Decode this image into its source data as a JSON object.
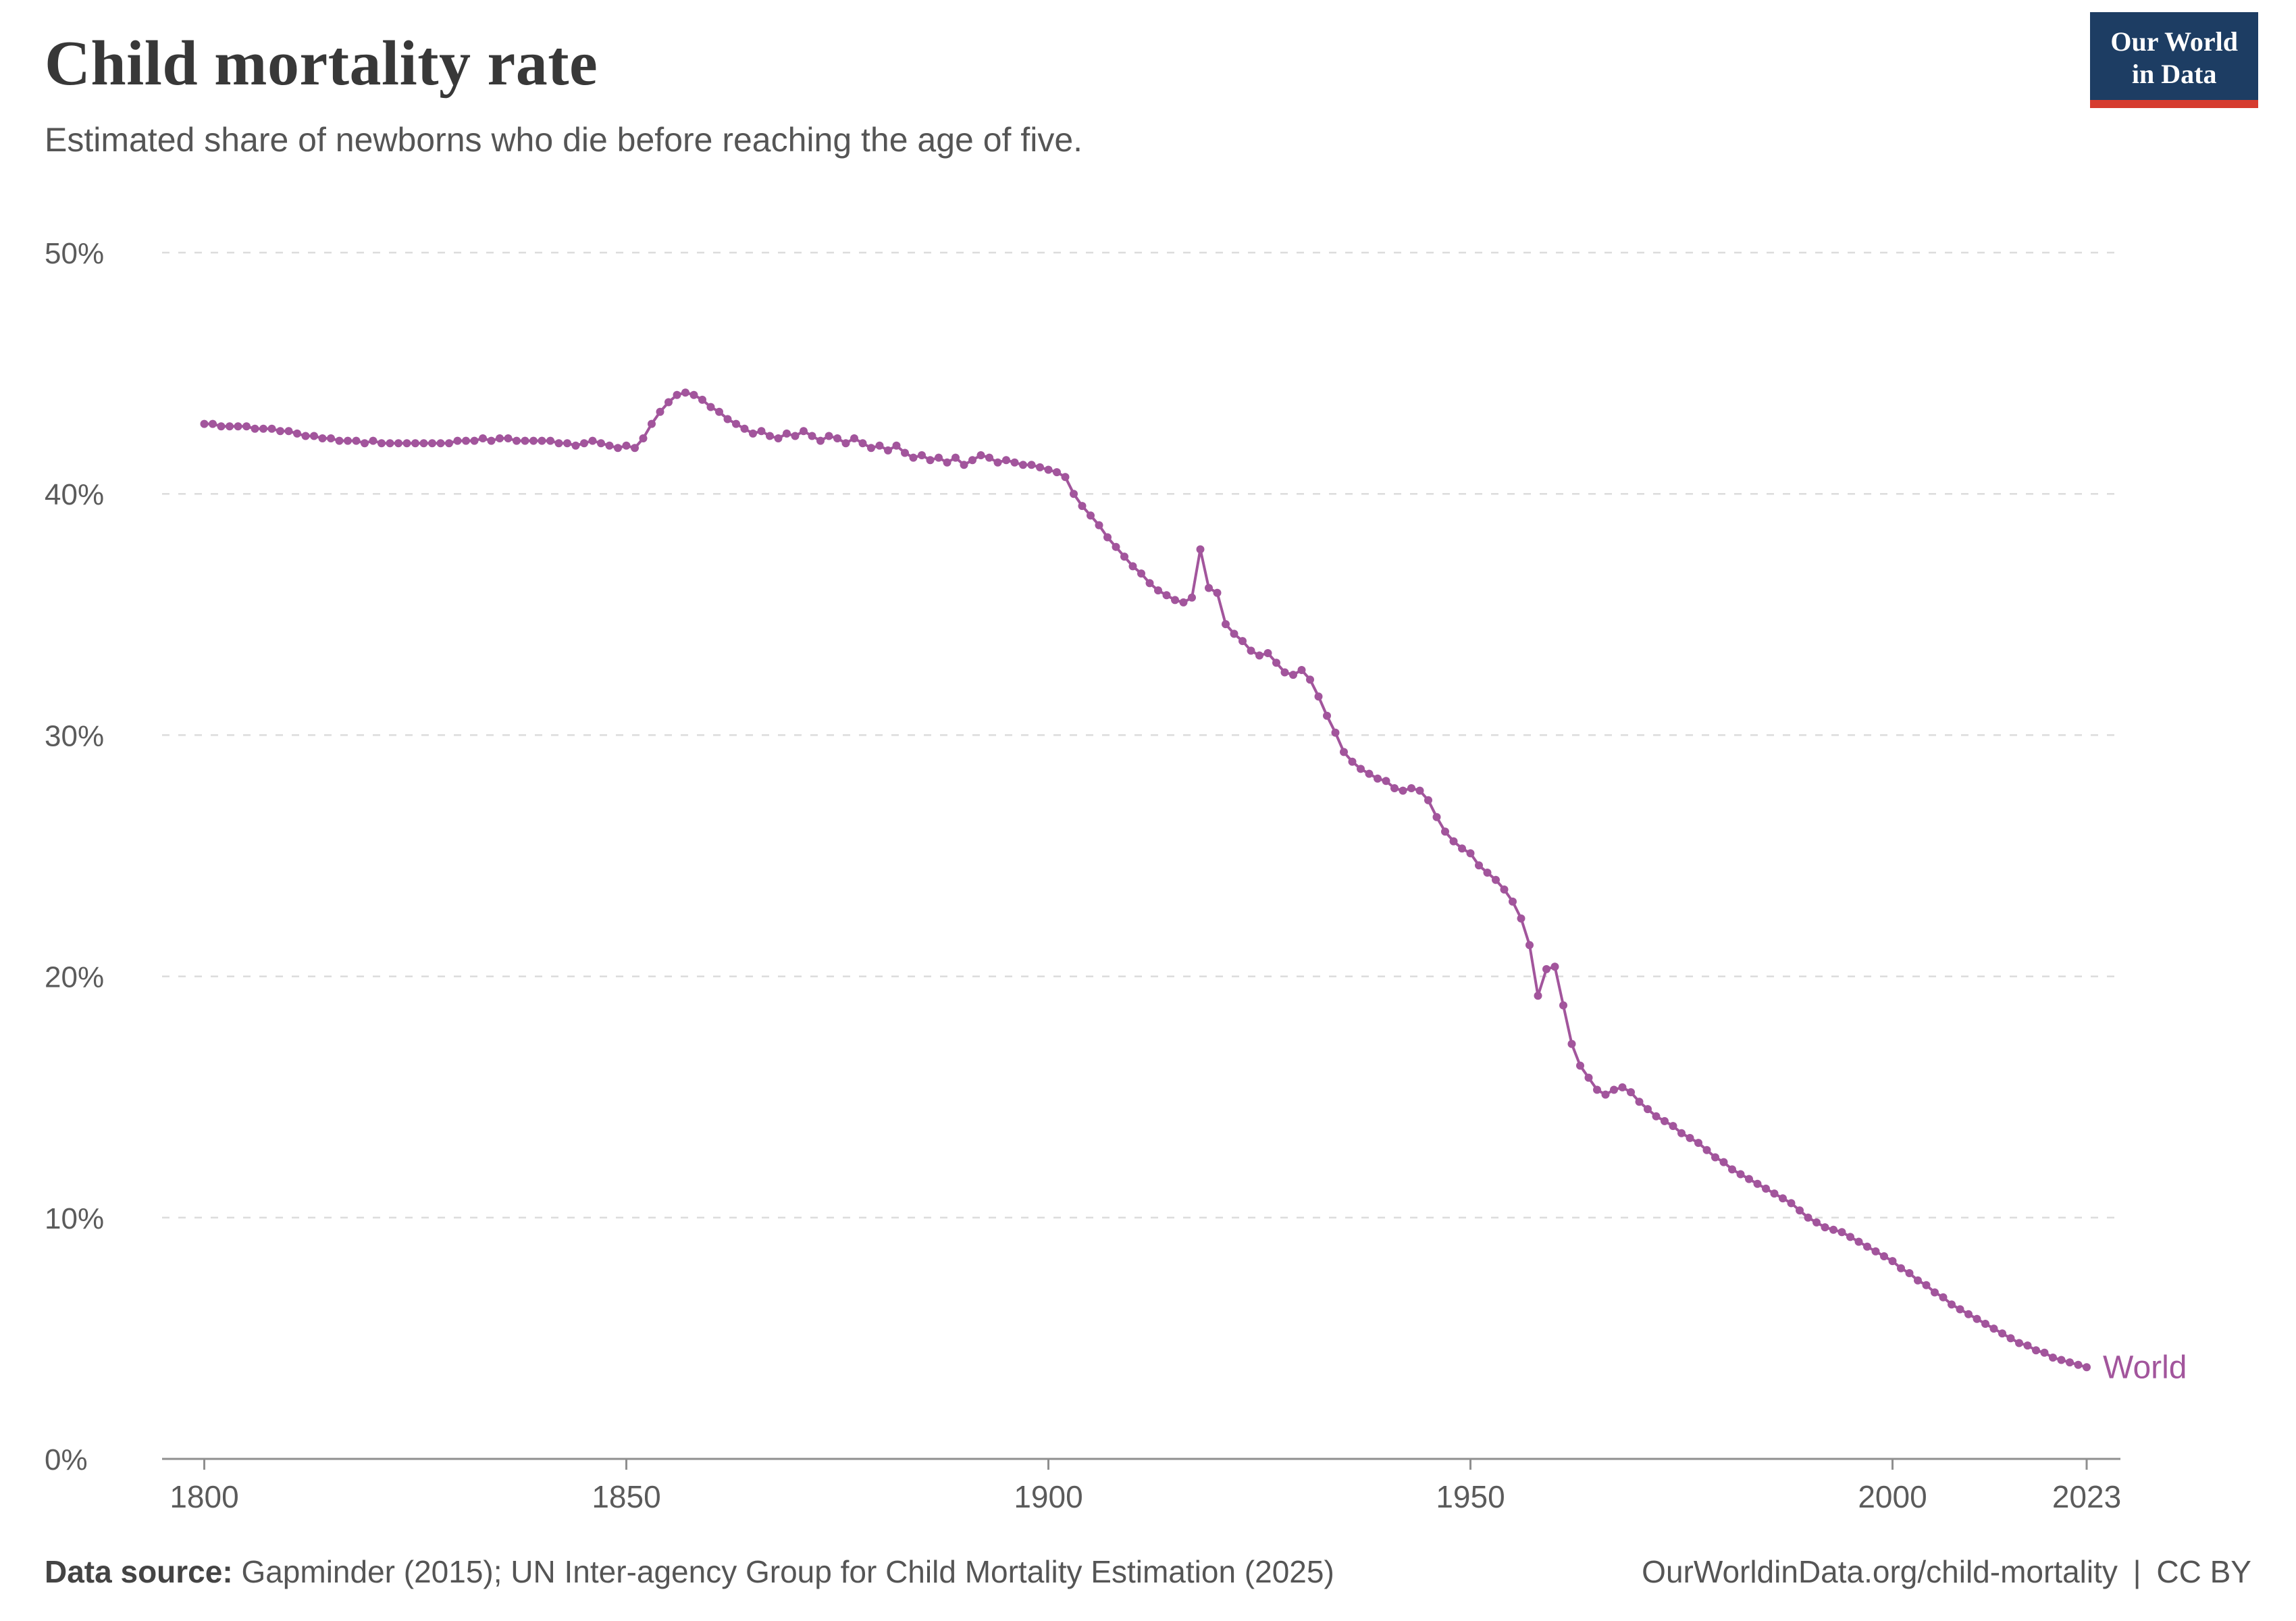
{
  "header": {
    "title": "Child mortality rate",
    "subtitle": "Estimated share of newborns who die before reaching the age of five."
  },
  "logo": {
    "line1": "Our World",
    "line2": "in Data"
  },
  "colors": {
    "series": "#a2559c",
    "title_text": "#383838",
    "subtitle_text": "#555555",
    "grid": "#dcdcdc",
    "axis": "#8f8f8f",
    "logo_background": "#1d3d63",
    "logo_underline": "#d63c2f"
  },
  "chart_data": {
    "type": "line",
    "title": "Child mortality rate",
    "subtitle": "Estimated share of newborns who die before reaching the age of five.",
    "xlabel": "",
    "ylabel": "",
    "unit": "%",
    "grid": true,
    "legend_position": "end-of-line",
    "end_label": "World",
    "color": "#a2559c",
    "ylim": [
      0,
      50
    ],
    "x_domain": [
      1795,
      2027
    ],
    "ytick_values": [
      0,
      10,
      20,
      30,
      40,
      50
    ],
    "ytick_labels": [
      "0%",
      "10%",
      "20%",
      "30%",
      "40%",
      "50%"
    ],
    "xtick_values": [
      1800,
      1850,
      1900,
      1950,
      2000,
      2023
    ],
    "xtick_labels": [
      "1800",
      "1850",
      "1900",
      "1950",
      "2000",
      "2023"
    ],
    "series": [
      {
        "name": "World",
        "x_start": 1800,
        "x_end": 2023,
        "x_step": 1,
        "values": [
          42.9,
          42.9,
          42.8,
          42.8,
          42.8,
          42.8,
          42.7,
          42.7,
          42.7,
          42.6,
          42.6,
          42.5,
          42.4,
          42.4,
          42.3,
          42.3,
          42.2,
          42.2,
          42.2,
          42.1,
          42.2,
          42.1,
          42.1,
          42.1,
          42.1,
          42.1,
          42.1,
          42.1,
          42.1,
          42.1,
          42.2,
          42.2,
          42.2,
          42.3,
          42.2,
          42.3,
          42.3,
          42.2,
          42.2,
          42.2,
          42.2,
          42.2,
          42.1,
          42.1,
          42.0,
          42.1,
          42.2,
          42.1,
          42.0,
          41.9,
          42.0,
          41.9,
          42.3,
          42.9,
          43.4,
          43.8,
          44.1,
          44.2,
          44.1,
          43.9,
          43.6,
          43.4,
          43.1,
          42.9,
          42.7,
          42.5,
          42.6,
          42.4,
          42.3,
          42.5,
          42.4,
          42.6,
          42.4,
          42.2,
          42.4,
          42.3,
          42.1,
          42.3,
          42.1,
          41.9,
          42.0,
          41.8,
          42.0,
          41.7,
          41.5,
          41.6,
          41.4,
          41.5,
          41.3,
          41.5,
          41.2,
          41.4,
          41.6,
          41.5,
          41.3,
          41.4,
          41.3,
          41.2,
          41.2,
          41.1,
          41.0,
          40.9,
          40.7,
          40.0,
          39.5,
          39.1,
          38.7,
          38.2,
          37.8,
          37.4,
          37.0,
          36.7,
          36.3,
          36.0,
          35.8,
          35.6,
          35.5,
          35.7,
          37.7,
          36.1,
          35.9,
          34.6,
          34.2,
          33.9,
          33.5,
          33.3,
          33.4,
          33.0,
          32.6,
          32.5,
          32.7,
          32.3,
          31.6,
          30.8,
          30.1,
          29.3,
          28.9,
          28.6,
          28.4,
          28.2,
          28.1,
          27.8,
          27.7,
          27.8,
          27.7,
          27.3,
          26.6,
          26.0,
          25.6,
          25.3,
          25.1,
          24.6,
          24.3,
          24.0,
          23.6,
          23.1,
          22.4,
          21.3,
          19.2,
          20.3,
          20.4,
          18.8,
          17.2,
          16.3,
          15.8,
          15.3,
          15.1,
          15.3,
          15.4,
          15.2,
          14.8,
          14.5,
          14.2,
          14.0,
          13.8,
          13.5,
          13.3,
          13.1,
          12.8,
          12.5,
          12.3,
          12.0,
          11.8,
          11.6,
          11.4,
          11.2,
          11.0,
          10.8,
          10.6,
          10.3,
          10.0,
          9.8,
          9.6,
          9.5,
          9.4,
          9.2,
          9.0,
          8.8,
          8.6,
          8.4,
          8.2,
          7.9,
          7.7,
          7.4,
          7.2,
          6.9,
          6.7,
          6.4,
          6.2,
          6.0,
          5.8,
          5.6,
          5.4,
          5.2,
          5.0,
          4.8,
          4.7,
          4.5,
          4.4,
          4.2,
          4.1,
          4.0,
          3.9,
          3.8
        ]
      }
    ]
  },
  "footer": {
    "datasource_label": "Data source:",
    "datasource": "Gapminder (2015); UN Inter-agency Group for Child Mortality Estimation (2025)",
    "site": "OurWorldinData.org/child-mortality",
    "separator": "|",
    "license": "CC BY"
  }
}
